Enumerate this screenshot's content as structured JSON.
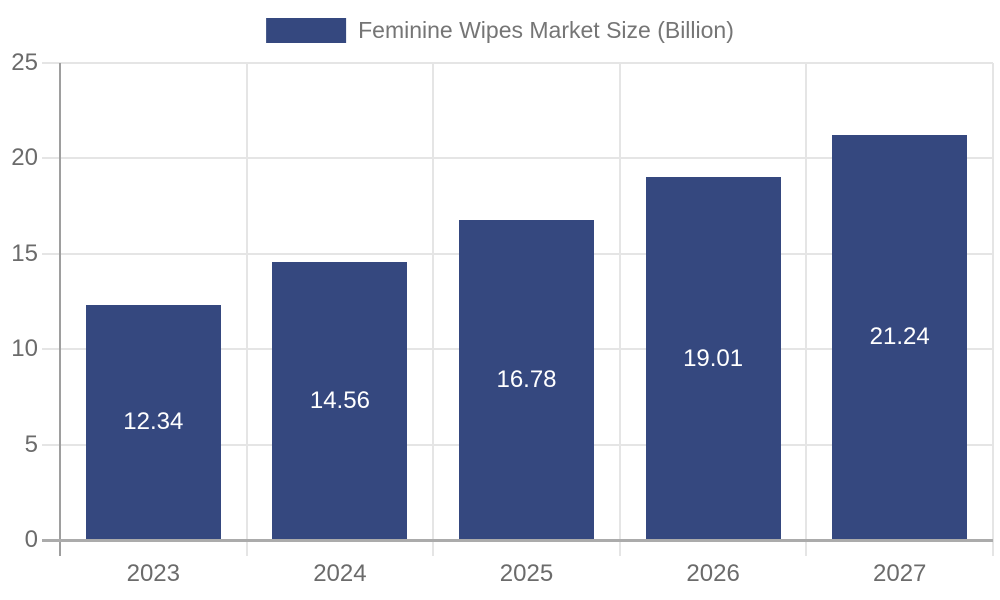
{
  "legend": {
    "label": "Feminine Wipes Market Size (Billion)",
    "swatch_color": "#35487F"
  },
  "chart_data": {
    "type": "bar",
    "title": "Feminine Wipes Market Size (Billion)",
    "categories": [
      "2023",
      "2024",
      "2025",
      "2026",
      "2027"
    ],
    "series": [
      {
        "name": "Feminine Wipes Market Size (Billion)",
        "values": [
          12.34,
          14.56,
          16.78,
          19.01,
          21.24
        ]
      }
    ],
    "value_labels": [
      "12.34",
      "14.56",
      "16.78",
      "19.01",
      "21.24"
    ],
    "xlabel": "",
    "ylabel": "",
    "ylim": [
      0,
      25
    ],
    "yticks": [
      0,
      5,
      10,
      15,
      20,
      25
    ],
    "grid": true,
    "legend_position": "top-center",
    "colors": {
      "bar": "#35487F",
      "value_label": "#FFFFFF",
      "tick_label": "#6B6B6B",
      "legend_text": "#757575",
      "gridline": "#E5E5E5",
      "axis_line": "#9E9E9E",
      "baseline": "#ABABAB",
      "background": "#FFFFFF"
    }
  }
}
